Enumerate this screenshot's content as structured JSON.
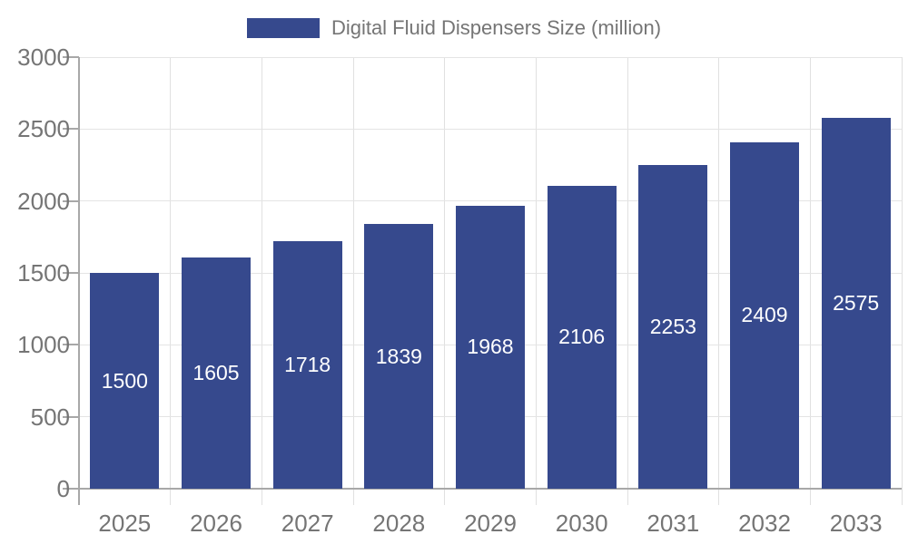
{
  "legend": {
    "label": "Digital Fluid Dispensers Size (million)",
    "swatch_color": "#36498d"
  },
  "chart_data": {
    "type": "bar",
    "title": "Digital Fluid Dispensers Size (million)",
    "series_name": "Digital Fluid Dispensers Size (million)",
    "categories": [
      "2025",
      "2026",
      "2027",
      "2028",
      "2029",
      "2030",
      "2031",
      "2032",
      "2033"
    ],
    "values": [
      1500,
      1605,
      1718,
      1839,
      1968,
      2106,
      2253,
      2409,
      2575
    ],
    "xlabel": "",
    "ylabel": "",
    "ylim": [
      0,
      3000
    ],
    "ytick_interval": 500,
    "yticks": [
      0,
      500,
      1000,
      1500,
      2000,
      2500,
      3000
    ],
    "grid": true,
    "legend_position": "top-center",
    "value_labels": "inside-center",
    "colors": {
      "bar": "#36498d",
      "grid_h": "#e4e4e4",
      "grid_v": "#e0e0e0",
      "axis": "#a8a8a8",
      "axis_text": "#757575",
      "value_label": "#ffffff",
      "background": "#ffffff"
    }
  }
}
